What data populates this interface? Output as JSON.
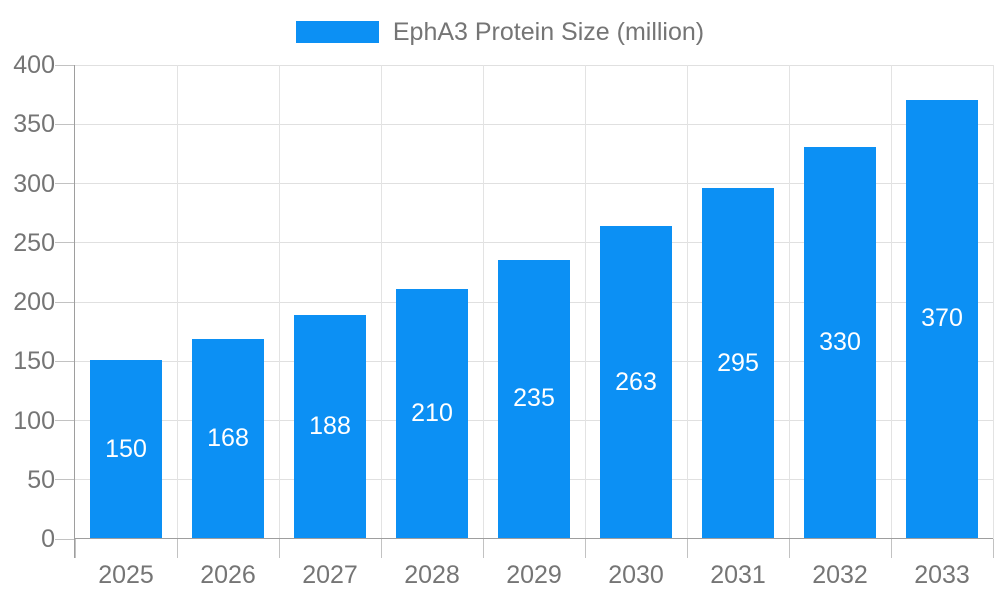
{
  "chart_data": {
    "type": "bar",
    "title": "EphA3 Protein Size (million)",
    "legend": {
      "label": "EphA3 Protein Size (million)",
      "position": "top-center"
    },
    "categories": [
      "2025",
      "2026",
      "2027",
      "2028",
      "2029",
      "2030",
      "2031",
      "2032",
      "2033"
    ],
    "series": [
      {
        "name": "EphA3 Protein Size (million)",
        "values": [
          150,
          168,
          188,
          210,
          235,
          263,
          295,
          330,
          370
        ]
      }
    ],
    "bar_value_labels": [
      "150",
      "168",
      "188",
      "210",
      "235",
      "263",
      "295",
      "330",
      "370"
    ],
    "xlabel": "",
    "ylabel": "",
    "ylim": [
      0,
      400
    ],
    "yticks": [
      0,
      50,
      100,
      150,
      200,
      250,
      300,
      350,
      400
    ],
    "grid": true,
    "colors": {
      "bar": "#0c90f4",
      "bar_label": "#ffffff",
      "axis_text": "#757575",
      "grid_line": "#e0e0e0",
      "axis_line": "#9e9e9e",
      "tick_line": "#c2c2c2",
      "background": "#ffffff"
    }
  }
}
